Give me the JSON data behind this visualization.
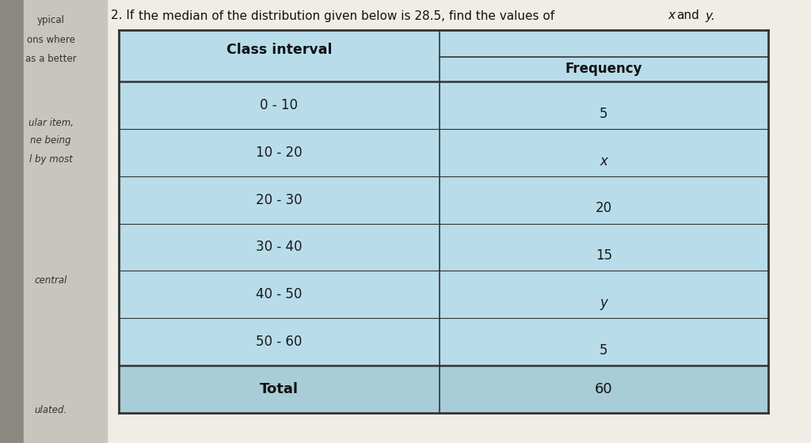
{
  "title_part1": "2. If",
  "title_part2": "the median of the distribution given below is 28.5, find the values of",
  "title_x": "x",
  "title_and": "and",
  "title_y": "y.",
  "col_headers": [
    "Class interval",
    "Frequency"
  ],
  "rows": [
    [
      "0 - 10",
      "5"
    ],
    [
      "10 - 20",
      "x"
    ],
    [
      "20 - 30",
      "20"
    ],
    [
      "30 - 40",
      "15"
    ],
    [
      "40 - 50",
      "y"
    ],
    [
      "50 - 60",
      "5"
    ]
  ],
  "total_row": [
    "Total",
    "60"
  ],
  "table_bg": "#b8dcea",
  "total_bg": "#a8ccd8",
  "border_color": "#333333",
  "text_color": "#1a1a1a",
  "fig_bg": "#e8e4df",
  "page_bg": "#f0ece6",
  "left_dark_bg": "#8a8880",
  "left_light_bg": "#c8c4be",
  "margin_text_color": "#333333",
  "margin_items": [
    [
      64,
      535,
      "ypical",
      false
    ],
    [
      64,
      510,
      "ons where",
      false
    ],
    [
      64,
      485,
      "as a better",
      false
    ],
    [
      64,
      405,
      "ular item,",
      true
    ],
    [
      64,
      383,
      "ne being",
      true
    ],
    [
      64,
      358,
      "l by most",
      true
    ],
    [
      64,
      205,
      "central",
      true
    ],
    [
      64,
      42,
      "ulated.",
      true
    ]
  ]
}
